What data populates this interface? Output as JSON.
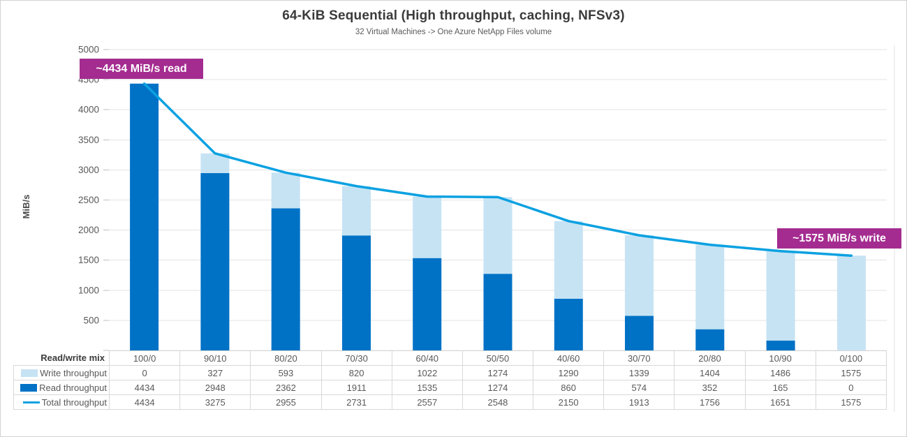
{
  "figure": {
    "title": "64-KiB Sequential (High throughput, caching, NFSv3)",
    "subtitle": "32 Virtual Machines -> One Azure NetApp Files volume"
  },
  "annotations": {
    "read": "~4434 MiB/s read",
    "write": "~1575 MiB/s write"
  },
  "colors": {
    "read_bar": "#0072C6",
    "write_bar": "#C6E3F4",
    "total_line": "#0BA1E1",
    "annotation_bg": "#A42C90",
    "annotation_text": "#FFFFFF"
  },
  "chart_data": {
    "type": "bar",
    "subtype": "stacked-bars-with-total-line",
    "title": "64-KiB Sequential (High throughput, caching, NFSv3)",
    "subtitle": "32 Virtual Machines -> One Azure NetApp Files volume",
    "xlabel": "Read/write mix",
    "ylabel": "MiB/s",
    "ylim": [
      0,
      5000
    ],
    "ytick_step": 500,
    "grid": true,
    "legend_position": "table-below-chart",
    "categories": [
      "100/0",
      "90/10",
      "80/20",
      "70/30",
      "60/40",
      "50/50",
      "40/60",
      "30/70",
      "20/80",
      "10/90",
      "0/100"
    ],
    "series": [
      {
        "name": "Write throughput",
        "type": "bar",
        "stack": "top",
        "color": "#C6E3F4",
        "values": [
          0,
          327,
          593,
          820,
          1022,
          1274,
          1290,
          1339,
          1404,
          1486,
          1575
        ]
      },
      {
        "name": "Read throughput",
        "type": "bar",
        "stack": "bottom",
        "color": "#0072C6",
        "values": [
          4434,
          2948,
          2362,
          1911,
          1535,
          1274,
          860,
          574,
          352,
          165,
          0
        ]
      },
      {
        "name": "Total throughput",
        "type": "line",
        "color": "#0BA1E1",
        "values": [
          4434,
          3275,
          2955,
          2731,
          2557,
          2548,
          2150,
          1913,
          1756,
          1651,
          1575
        ]
      }
    ]
  }
}
